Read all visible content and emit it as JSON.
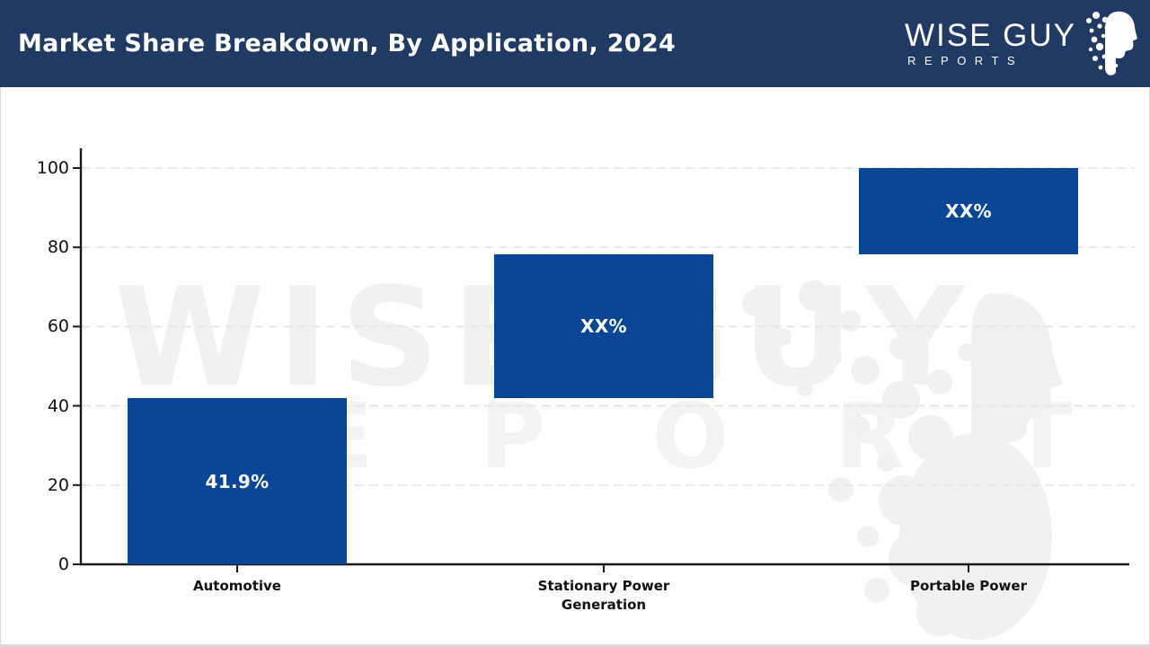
{
  "header": {
    "title": "Market Share Breakdown, By Application, 2024",
    "logo": {
      "line1": "WISE GUY",
      "line2": "REPORTS"
    }
  },
  "watermark": {
    "line1": "WISE GUY",
    "line2": "R E P O R T S"
  },
  "colors": {
    "header_bg": "#213a63",
    "bar_blue": "#0b4596",
    "grid": "#e4e4e4",
    "axis": "#1a1a1a",
    "watermark_gray": "#f1f1f1"
  },
  "chart_data": {
    "type": "bar",
    "subtype": "waterfall",
    "title": "Market Share Breakdown, By Application, 2024",
    "xlabel": "",
    "ylabel": "",
    "categories": [
      "Automotive",
      "Stationary Power Generation",
      "Portable Power"
    ],
    "category_display": [
      "Automotive",
      "Stationary Power\nGeneration",
      "Portable Power"
    ],
    "segments": [
      {
        "category": "Automotive",
        "start": 0,
        "end": 41.9,
        "size": 41.9,
        "label": "41.9%"
      },
      {
        "category": "Stationary Power Generation",
        "start": 41.9,
        "end": 78.2,
        "size": 36.3,
        "label": "XX%"
      },
      {
        "category": "Portable Power",
        "start": 78.2,
        "end": 100,
        "size": 21.8,
        "label": "XX%"
      }
    ],
    "ylim": [
      0,
      100
    ],
    "yticks": [
      0,
      20,
      40,
      60,
      80,
      100
    ],
    "grid": "horizontal dashed",
    "legend": "none"
  }
}
